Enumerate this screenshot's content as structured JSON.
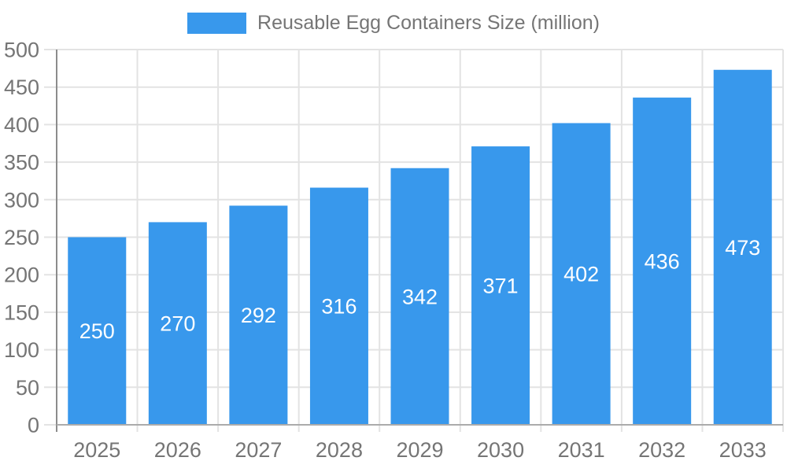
{
  "chart_data": {
    "type": "bar",
    "title": "Reusable Egg Containers Size (million)",
    "categories": [
      "2025",
      "2026",
      "2027",
      "2028",
      "2029",
      "2030",
      "2031",
      "2032",
      "2033"
    ],
    "values": [
      250,
      270,
      292,
      316,
      342,
      371,
      402,
      436,
      473
    ],
    "xlabel": "",
    "ylabel": "",
    "ylim": [
      0,
      500
    ],
    "yticks": [
      "0",
      "50",
      "100",
      "150",
      "200",
      "250",
      "300",
      "350",
      "400",
      "450",
      "500"
    ],
    "grid": true,
    "legend_position": "top-center",
    "value_label_position": "inside-center",
    "colors": {
      "bar": "#3898EC",
      "grid": "#E3E3E3",
      "y_axis": "#8C8C8C",
      "x_axis": "#ABABAB",
      "tick_text": "#757575",
      "value_text": "#FFFFFF",
      "background": "#FFFFFF"
    }
  }
}
